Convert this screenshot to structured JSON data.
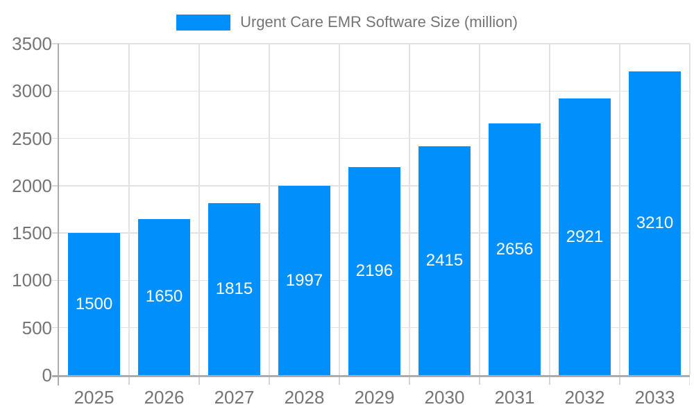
{
  "legend": {
    "label": "Urgent Care EMR Software Size (million)"
  },
  "chart_data": {
    "type": "bar",
    "title": "Urgent Care EMR Software Size (million)",
    "series_name": "Urgent Care EMR Software Size (million)",
    "categories": [
      "2025",
      "2026",
      "2027",
      "2028",
      "2029",
      "2030",
      "2031",
      "2032",
      "2033"
    ],
    "values": [
      1500,
      1650,
      1815,
      1997,
      2196,
      2415,
      2656,
      2921,
      3210
    ],
    "xlabel": "",
    "ylabel": "",
    "ylim": [
      0,
      3500
    ],
    "ytick_step": 500,
    "yticks": [
      0,
      500,
      1000,
      1500,
      2000,
      2500,
      3000,
      3500
    ],
    "grid": true,
    "legend_position": "top-center",
    "value_labels": "inside-center",
    "colors": {
      "bar": "#008FFB",
      "value_label": "#FFFFFF",
      "axis_label": "#757575",
      "gridline": "#E2E2E2",
      "axis_line": "#ABABAB",
      "tick": "#D6D6D6"
    }
  }
}
